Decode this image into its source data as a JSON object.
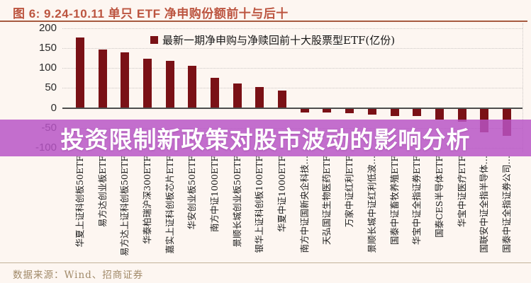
{
  "header": {
    "title": "图 6: 9.24-10.11 单只 ETF 净申购份额前十与后十"
  },
  "legend": {
    "label": "最新一期净申购与净赎回前十大股票型ETF(亿份)",
    "marker_color": "#7a1116"
  },
  "overlay": {
    "text": "投资限制新政策对股市波动的影响分析",
    "bg_color": "rgba(184,84,198,0.84)",
    "text_color": "#ffffff"
  },
  "footer": {
    "source": "数据来源：Wind、招商证券"
  },
  "chart_data": {
    "type": "bar",
    "title": "9.24-10.11 单只 ETF 净申购份额前十与后十",
    "ylabel": "亿份",
    "ylim": [
      -100,
      200
    ],
    "yticks": [
      200,
      150,
      100,
      50,
      0,
      -50,
      -100
    ],
    "grid": "dotted horizontal",
    "legend_position": "top-center",
    "bar_color": "#7a1116",
    "categories": [
      "华夏上证科创板50ETF",
      "易方达创业板ETF",
      "易方达上证科创板50ETF",
      "华泰柏瑞沪深300ETF",
      "嘉实上证科创板芯片ETF",
      "华安创业板50ETF",
      "南方中证1000ETF",
      "景顺长城创业板50ETF",
      "银华上证科创板100ETF",
      "华夏中证1000ETF",
      "南方中证国新央企科技…",
      "天弘国证生物医药ETF",
      "万家中证红利ETF",
      "景顺长城中证红利低波…",
      "国泰中证畜牧养殖ETF",
      "华宝中证全指证券ETF",
      "国泰CES半导体ETF",
      "华宝中证医疗ETF",
      "国联安中证全指半导体…",
      "国泰中证全指证券公司…"
    ],
    "values": [
      176,
      146,
      139,
      123,
      118,
      105,
      74,
      61,
      52,
      43,
      -8,
      -9,
      -10,
      -14,
      -18,
      -18,
      -27,
      -32,
      -58,
      -67
    ]
  }
}
